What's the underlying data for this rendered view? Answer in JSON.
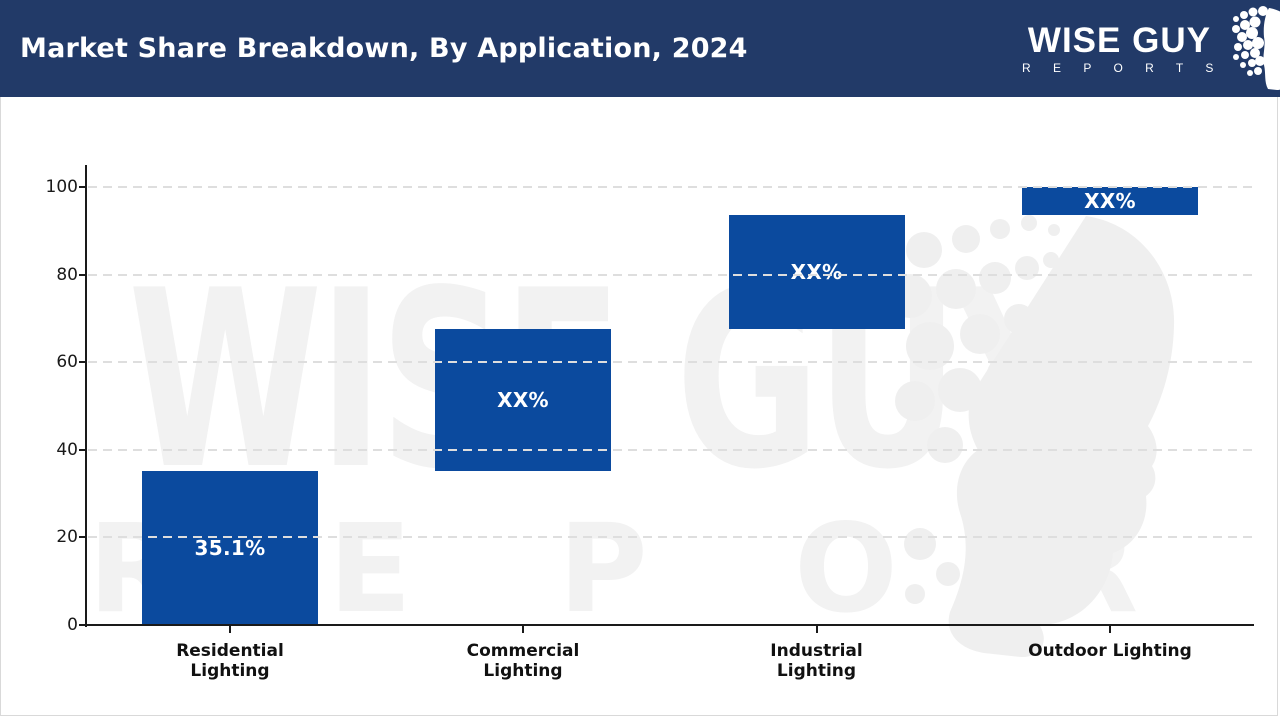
{
  "header": {
    "title": "Market Share Breakdown, By Application, 2024",
    "logo": {
      "line1": "WISE GUY",
      "line2": "R E P O R T S"
    }
  },
  "watermark": {
    "line1": "WISE GUY",
    "line2": "R E P O R T S"
  },
  "chart_data": {
    "type": "bar",
    "subtype": "waterfall-stacked-breakdown",
    "title": "Market Share Breakdown, By Application, 2024",
    "categories": [
      "Residential Lighting",
      "Commercial Lighting",
      "Industrial Lighting",
      "Outdoor Lighting"
    ],
    "category_lines": [
      [
        "Residential",
        "Lighting"
      ],
      [
        "Commercial",
        "Lighting"
      ],
      [
        "Industrial",
        "Lighting"
      ],
      [
        "Outdoor Lighting"
      ]
    ],
    "segments": [
      {
        "category": "Residential Lighting",
        "start": 0,
        "end": 35.1,
        "label": "35.1%"
      },
      {
        "category": "Commercial Lighting",
        "start": 35.1,
        "end": 67.5,
        "label": "XX%"
      },
      {
        "category": "Industrial Lighting",
        "start": 67.5,
        "end": 93.6,
        "label": "XX%"
      },
      {
        "category": "Outdoor Lighting",
        "start": 93.6,
        "end": 100,
        "label": "XX%"
      }
    ],
    "y_ticks": [
      0,
      20,
      40,
      60,
      80,
      100
    ],
    "y_tick_labels": [
      "0",
      "20",
      "40",
      "60",
      "80",
      "100"
    ],
    "ylim": [
      0,
      105
    ],
    "grid": "horizontal-dashed-over-bars",
    "legend": "none",
    "bar_color": "#0b4a9e",
    "bar_label_color": "#ffffff"
  },
  "colors": {
    "header_bg": "#223A68",
    "bar": "#0b4a9e",
    "grid": "#dedede",
    "axis": "#1a1a1a",
    "watermark": "#f2f2f2",
    "frame_border": "#d9d9d9"
  }
}
